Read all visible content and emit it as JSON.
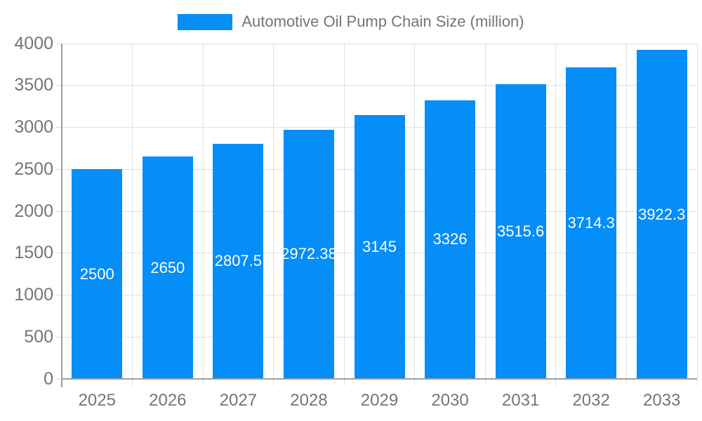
{
  "legend": {
    "label": "Automotive Oil Pump Chain Size (million)"
  },
  "chart_data": {
    "type": "bar",
    "title": "Automotive Oil Pump Chain Size (million)",
    "categories": [
      "2025",
      "2026",
      "2027",
      "2028",
      "2029",
      "2030",
      "2031",
      "2032",
      "2033"
    ],
    "values": [
      2500,
      2650,
      2807.5,
      2972.38,
      3145,
      3326,
      3515.6,
      3714.3,
      3922.3
    ],
    "value_labels": [
      "2500",
      "2650",
      "2807.5",
      "2972.38",
      "3145",
      "3326",
      "3515.6",
      "3714.3",
      "3922.3"
    ],
    "xlabel": "",
    "ylabel": "",
    "ylim": [
      0,
      4000
    ],
    "ytick_step": 500,
    "ytick_labels": [
      "0",
      "500",
      "1000",
      "1500",
      "2000",
      "2500",
      "3000",
      "3500",
      "4000"
    ],
    "grid": "both",
    "legend_position": "top-center",
    "data_label_position": "bar-center",
    "colors": {
      "bar": "#058DF8",
      "grid": "#e0e0e0",
      "tick": "#d6d6d6",
      "axis": "#9e9e9e",
      "text": "#757575",
      "data_label": "#ffffff",
      "background": "#ffffff"
    }
  }
}
